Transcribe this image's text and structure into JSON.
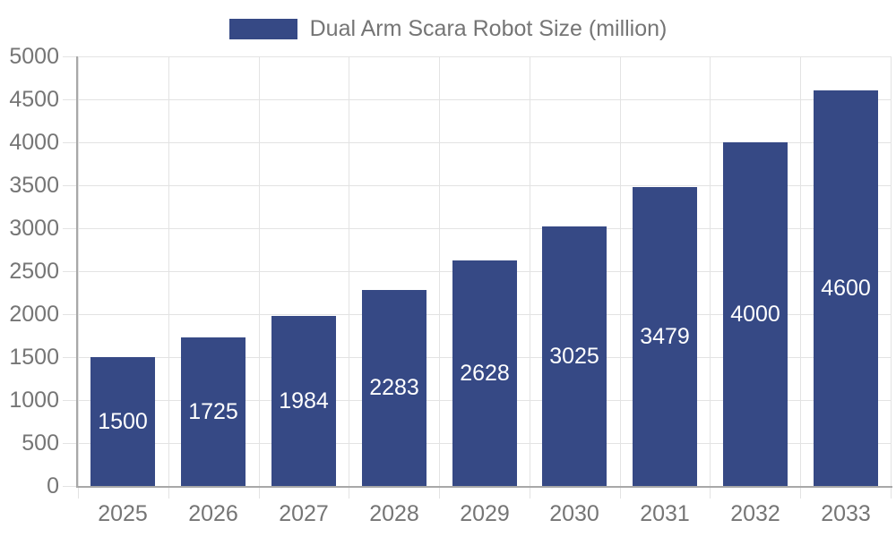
{
  "colors": {
    "bar": "#364985",
    "bar_label": "#ffffff",
    "grid": "#e3e3e3",
    "axis": "#a8a8a8",
    "text": "#757575",
    "background": "#ffffff"
  },
  "chart_data": {
    "type": "bar",
    "title": "",
    "legend_position": "top-center",
    "grid": true,
    "categories": [
      "2025",
      "2026",
      "2027",
      "2028",
      "2029",
      "2030",
      "2031",
      "2032",
      "2033"
    ],
    "series": [
      {
        "name": "Dual Arm Scara Robot Size (million)",
        "values": [
          1500,
          1725,
          1984,
          2283,
          2628,
          3025,
          3479,
          4000,
          4600
        ]
      }
    ],
    "xlabel": "",
    "ylabel": "",
    "ylim": [
      0,
      5000
    ],
    "ytick_step": 500,
    "yticks": [
      "0",
      "500",
      "1000",
      "1500",
      "2000",
      "2500",
      "3000",
      "3500",
      "4000",
      "4500",
      "5000"
    ],
    "bar_value_labels": [
      "1500",
      "1725",
      "1984",
      "2283",
      "2628",
      "3025",
      "3479",
      "4000",
      "4600"
    ],
    "bar_label_position": "inside-center"
  }
}
